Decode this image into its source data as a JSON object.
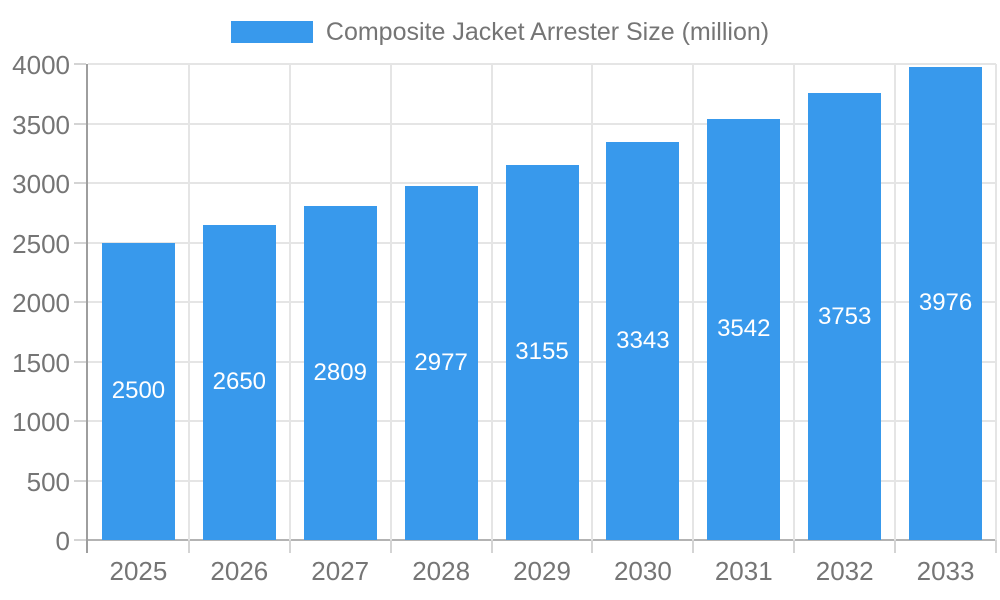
{
  "legend": {
    "items": [
      {
        "label": "Composite Jacket Arrester Size (million)",
        "swatch_color": "#3899EC"
      }
    ]
  },
  "chart_data": {
    "type": "bar",
    "title": "Composite Jacket Arrester Size (million)",
    "series_name": "Composite Jacket Arrester Size (million)",
    "categories": [
      "2025",
      "2026",
      "2027",
      "2028",
      "2029",
      "2030",
      "2031",
      "2032",
      "2033"
    ],
    "values": [
      2500,
      2650,
      2809,
      2977,
      3155,
      3343,
      3542,
      3753,
      3976
    ],
    "xlabel": "",
    "ylabel": "",
    "ylim": [
      0,
      4000
    ],
    "yticks": [
      0,
      500,
      1000,
      1500,
      2000,
      2500,
      3000,
      3500,
      4000
    ],
    "grid": true,
    "legend_position": "top-center",
    "value_label_position": "inside-center"
  },
  "style": {
    "bar_color": "#3899EC",
    "value_label_color": "#ffffff",
    "text_color": "#757575",
    "grid_color": "#e5e5e5",
    "axis_line_color": "#9e9e9e",
    "baseline_color": "#b3b3b3",
    "tick_color": "#d4d4d4",
    "background": "#ffffff"
  }
}
